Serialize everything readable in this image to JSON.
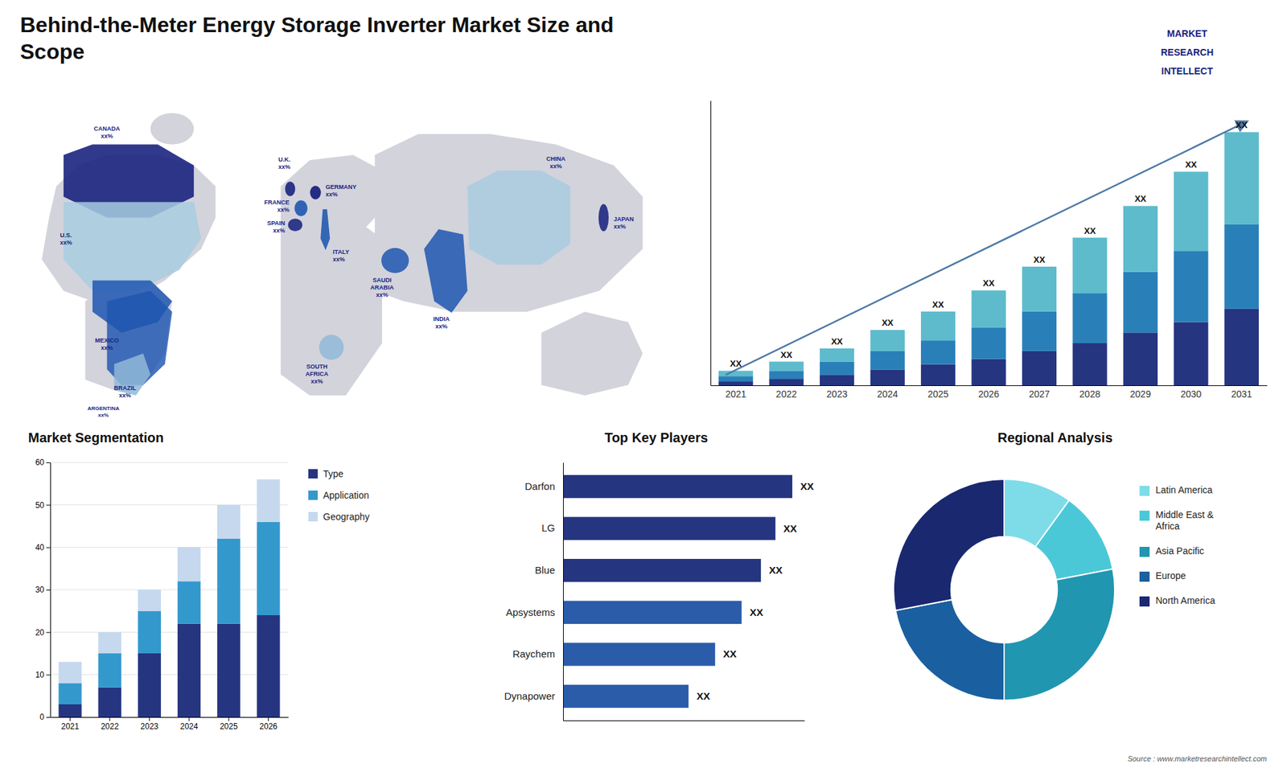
{
  "chart_data": [
    {
      "type": "map",
      "title": "Behind-the-Meter Energy Storage Inverter Market Size and\nScope",
      "annotations": [
        "CANADA\nxx%",
        "U.S.\nxx%",
        "MEXICO\nxx%",
        "BRAZIL\nxx%",
        "ARGENTINA\nxx%",
        "U.K.\nxx%",
        "FRANCE\nxx%",
        "GERMANY\nxx%",
        "SPAIN\nxx%",
        "ITALY\nxx%",
        "SAUDI\nARABIA\nxx%",
        "SOUTH\nAFRICA\nxx%",
        "CHINA\nxx%",
        "INDIA\nxx%",
        "JAPAN\nxx%"
      ],
      "colors": [
        "#1a237e",
        "#a8cce0",
        "#1e56b0",
        "#1e56b0",
        "#90b8d8",
        "#1a237e",
        "#1e56b0",
        "#1a237e",
        "#1a237e",
        "#1e56b0",
        "#1e56b0",
        "#90b8d8",
        "#a8cce0",
        "#1e56b0",
        "#1a237e"
      ]
    },
    {
      "type": "bar",
      "stacked": true,
      "categories": [
        "2021",
        "2022",
        "2023",
        "2024",
        "2025",
        "2026",
        "2027",
        "2028",
        "2029",
        "2030",
        "2031"
      ],
      "series": [
        {
          "color": "#263580",
          "values": [
            1.5,
            2.5,
            4,
            6,
            8,
            10,
            13,
            16,
            20,
            24,
            29
          ]
        },
        {
          "color": "#2980b9",
          "values": [
            2,
            3,
            5,
            7,
            9,
            12,
            15,
            19,
            23,
            27,
            32
          ]
        },
        {
          "color": "#5dbbcc",
          "values": [
            2,
            3.5,
            5,
            8,
            11,
            14,
            17,
            21,
            25,
            30,
            35
          ],
          "value_labels": [
            "XX",
            "XX",
            "XX",
            "XX",
            "XX",
            "XX",
            "XX",
            "XX",
            "XX",
            "XX",
            "XX"
          ]
        }
      ],
      "ylim": [
        0,
        108
      ],
      "tick_labels": "x",
      "annotations": [
        "MARKET",
        "RESEARCH",
        "INTELLECT"
      ]
    },
    {
      "type": "bar",
      "stacked": true,
      "title": "Market Segmentation",
      "categories": [
        "2021",
        "2022",
        "2023",
        "2024",
        "2025",
        "2026"
      ],
      "series": [
        {
          "name": "Type",
          "color": "#263580",
          "values": [
            3,
            7,
            15,
            22,
            22,
            24
          ]
        },
        {
          "name": "Application",
          "color": "#3399cc",
          "values": [
            5,
            8,
            10,
            10,
            20,
            22
          ]
        },
        {
          "name": "Geography",
          "color": "#c5d8ee",
          "values": [
            5,
            5,
            5,
            8,
            8,
            10
          ]
        }
      ],
      "ylim": [
        0,
        60
      ],
      "yticks": [
        0,
        10,
        20,
        30,
        40,
        50,
        60
      ],
      "grid": true,
      "legend": "right"
    },
    {
      "type": "bar",
      "orientation": "horizontal",
      "title": "Top Key Players",
      "categories": [
        "Darfon",
        "LG",
        "Blue",
        "Apsystems",
        "Raychem",
        "Dynapower"
      ],
      "values": [
        95,
        88,
        82,
        74,
        63,
        52
      ],
      "value_labels": [
        "XX",
        "XX",
        "XX",
        "XX",
        "XX",
        "XX"
      ],
      "colors": [
        "#263580",
        "#263580",
        "#263580",
        "#2a5caa",
        "#2a5caa",
        "#2a5caa"
      ],
      "xlim": [
        0,
        100
      ],
      "tick_labels": "y"
    },
    {
      "type": "pie",
      "title": "Regional Analysis",
      "categories": [
        "Latin America",
        "Middle East &\nAfrica",
        "Asia Pacific",
        "Europe",
        "North America"
      ],
      "values": [
        10,
        12,
        28,
        22,
        28
      ],
      "colors": [
        "#7edce8",
        "#4bc8d8",
        "#2196b0",
        "#1a5fa0",
        "#1a2870"
      ],
      "legend": "right",
      "annotations": [
        "Source : www.marketresearchintellect.com"
      ]
    }
  ]
}
